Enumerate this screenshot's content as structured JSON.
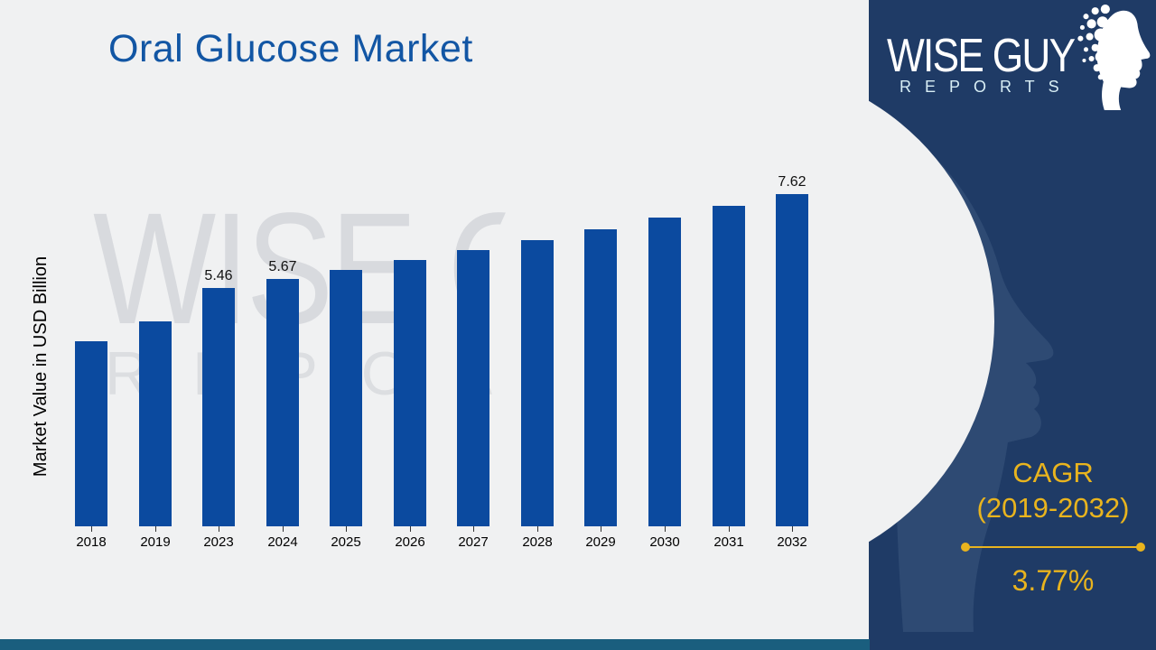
{
  "title": "Oral Glucose Market",
  "watermark": {
    "line1": "WISE GUY",
    "line2": "REPORTS"
  },
  "logo": {
    "line1": "WISE GUY",
    "line2": "REPORTS",
    "face_icon": "head-profile-dots-icon"
  },
  "cagr": {
    "label": "CAGR",
    "range": "(2019-2032)",
    "value": "3.77%"
  },
  "colors": {
    "background": "#f0f1f2",
    "title": "#1256a4",
    "bar": "#0b4a9f",
    "navy_panel": "#1f3b66",
    "face_silhouette": "#2e4a73",
    "gold": "#e9b41e",
    "teal_strip": "#1a5e7e",
    "watermark": "#d8dade"
  },
  "chart_data": {
    "type": "bar",
    "title": "Oral Glucose Market",
    "xlabel": "",
    "ylabel": "Market Value in USD Billion",
    "categories": [
      "2018",
      "2019",
      "2023",
      "2024",
      "2025",
      "2026",
      "2027",
      "2028",
      "2029",
      "2030",
      "2031",
      "2032"
    ],
    "values": [
      4.25,
      4.71,
      5.46,
      5.67,
      5.88,
      6.1,
      6.33,
      6.57,
      6.82,
      7.08,
      7.34,
      7.62
    ],
    "data_labels": {
      "2023": "5.46",
      "2024": "5.67",
      "2032": "7.62"
    },
    "ylim": [
      0,
      8
    ],
    "grid": false,
    "legend": false,
    "bar_color": "#0b4a9f"
  }
}
